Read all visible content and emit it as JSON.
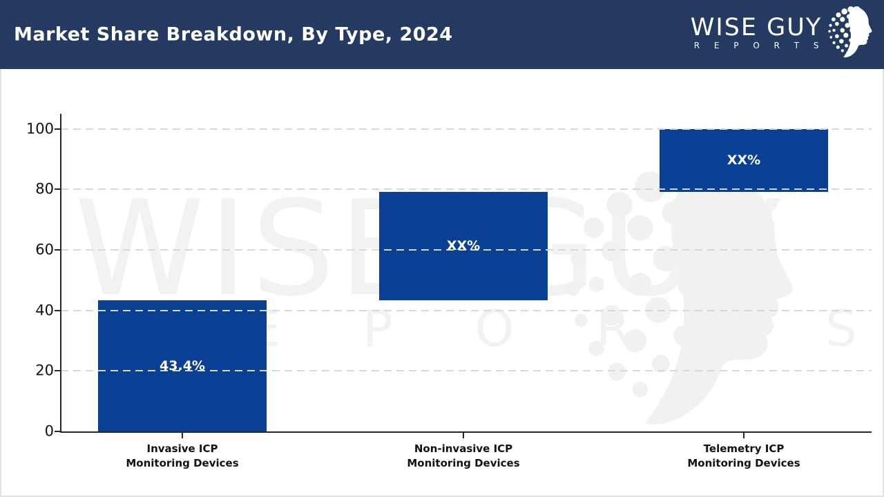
{
  "header": {
    "title": "Market Share Breakdown, By Type, 2024",
    "logo": {
      "line1": "WISE GUY",
      "line2": "R E P O R T S"
    }
  },
  "watermark": {
    "line1": "WISE GUY",
    "line2": "R E P O R T S"
  },
  "colors": {
    "header_bg": "#243a61",
    "bar": "#0a4093",
    "grid": "#d9d9d9",
    "axis": "#262626",
    "bar_label": "#ffffff",
    "watermark": "#f2f2f2"
  },
  "chart_data": {
    "type": "bar",
    "variant": "waterfall",
    "title": "Market Share Breakdown, By Type, 2024",
    "categories": [
      "Invasive ICP\nMonitoring Devices",
      "Non-invasive ICP\nMonitoring Devices",
      "Telemetry ICP\nMonitoring Devices"
    ],
    "segments": [
      {
        "start": 0,
        "end": 43.4,
        "label": "43.4%"
      },
      {
        "start": 43.4,
        "end": 79.2,
        "label": "XX%"
      },
      {
        "start": 79.2,
        "end": 100,
        "label": "XX%"
      }
    ],
    "ylim": [
      0,
      100
    ],
    "yticks": [
      0,
      20,
      40,
      60,
      80,
      100
    ],
    "grid": "horizontal-dashed",
    "legend": "none",
    "xlabel": "",
    "ylabel": ""
  }
}
